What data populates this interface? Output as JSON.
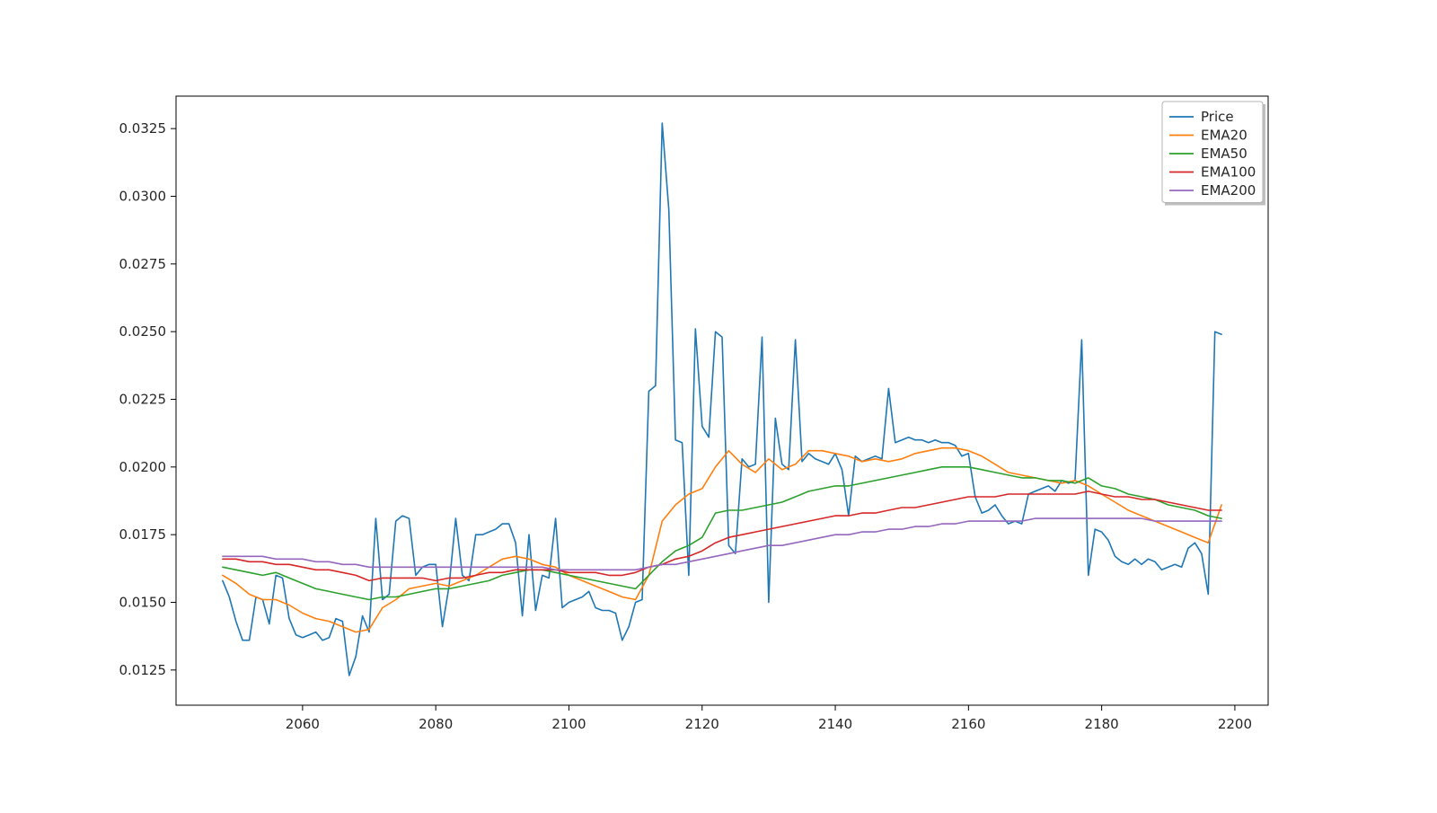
{
  "figure": {
    "background": "#ffffff"
  },
  "chart_data": {
    "type": "line",
    "title": "",
    "xlabel": "",
    "ylabel": "",
    "grid": false,
    "xlim": [
      2041,
      2205
    ],
    "ylim": [
      0.0112,
      0.0337
    ],
    "x_ticks": [
      2060,
      2080,
      2100,
      2120,
      2140,
      2160,
      2180,
      2200
    ],
    "x_tick_labels": [
      "2060",
      "2080",
      "2100",
      "2120",
      "2140",
      "2160",
      "2180",
      "2200"
    ],
    "y_ticks": [
      0.0125,
      0.015,
      0.0175,
      0.02,
      0.0225,
      0.025,
      0.0275,
      0.03,
      0.0325
    ],
    "y_tick_labels": [
      "0.0125",
      "0.0150",
      "0.0175",
      "0.0200",
      "0.0225",
      "0.0250",
      "0.0275",
      "0.0300",
      "0.0325"
    ],
    "legend": {
      "position": "upper right",
      "entries": [
        "Price",
        "EMA20",
        "EMA50",
        "EMA100",
        "EMA200"
      ]
    },
    "series": [
      {
        "name": "Price",
        "color": "#1f77b4",
        "x_start": 2048,
        "x_step": 1,
        "values": [
          0.0158,
          0.0152,
          0.0143,
          0.0136,
          0.0136,
          0.0152,
          0.0151,
          0.0142,
          0.016,
          0.0159,
          0.0144,
          0.0138,
          0.0137,
          0.0138,
          0.0139,
          0.0136,
          0.0137,
          0.0144,
          0.0143,
          0.0123,
          0.013,
          0.0145,
          0.0139,
          0.0181,
          0.0151,
          0.0153,
          0.018,
          0.0182,
          0.0181,
          0.016,
          0.0163,
          0.0164,
          0.0164,
          0.0141,
          0.0156,
          0.0181,
          0.016,
          0.0158,
          0.0175,
          0.0175,
          0.0176,
          0.0177,
          0.0179,
          0.0179,
          0.0172,
          0.0145,
          0.0175,
          0.0147,
          0.016,
          0.0159,
          0.0181,
          0.0148,
          0.015,
          0.0151,
          0.0152,
          0.0154,
          0.0148,
          0.0147,
          0.0147,
          0.0146,
          0.0136,
          0.0141,
          0.015,
          0.0151,
          0.0228,
          0.023,
          0.0327,
          0.0295,
          0.021,
          0.0209,
          0.016,
          0.0251,
          0.0215,
          0.0211,
          0.025,
          0.0248,
          0.0171,
          0.0168,
          0.0203,
          0.02,
          0.0201,
          0.0248,
          0.015,
          0.0218,
          0.0201,
          0.0199,
          0.0247,
          0.0202,
          0.0205,
          0.0203,
          0.0202,
          0.0201,
          0.0205,
          0.0199,
          0.0182,
          0.0204,
          0.0202,
          0.0203,
          0.0204,
          0.0203,
          0.0229,
          0.0209,
          0.021,
          0.0211,
          0.021,
          0.021,
          0.0209,
          0.021,
          0.0209,
          0.0209,
          0.0208,
          0.0204,
          0.0205,
          0.0189,
          0.0183,
          0.0184,
          0.0186,
          0.0182,
          0.0179,
          0.018,
          0.0179,
          0.019,
          0.0191,
          0.0192,
          0.0193,
          0.0191,
          0.0195,
          0.0194,
          0.0195,
          0.0247,
          0.016,
          0.0177,
          0.0176,
          0.0173,
          0.0167,
          0.0165,
          0.0164,
          0.0166,
          0.0164,
          0.0166,
          0.0165,
          0.0162,
          0.0163,
          0.0164,
          0.0163,
          0.017,
          0.0172,
          0.0168,
          0.0153,
          0.025,
          0.0249
        ]
      },
      {
        "name": "EMA20",
        "color": "#ff7f0e",
        "x_start": 2048,
        "x_step": 2,
        "values": [
          0.016,
          0.0157,
          0.0153,
          0.0151,
          0.0151,
          0.0149,
          0.0146,
          0.0144,
          0.0143,
          0.0141,
          0.0139,
          0.014,
          0.0148,
          0.0151,
          0.0155,
          0.0156,
          0.0157,
          0.0156,
          0.0158,
          0.016,
          0.0163,
          0.0166,
          0.0167,
          0.0166,
          0.0164,
          0.0163,
          0.016,
          0.0158,
          0.0156,
          0.0154,
          0.0152,
          0.0151,
          0.016,
          0.018,
          0.0186,
          0.019,
          0.0192,
          0.02,
          0.0206,
          0.0201,
          0.0198,
          0.0203,
          0.0199,
          0.0201,
          0.0206,
          0.0206,
          0.0205,
          0.0204,
          0.0202,
          0.0203,
          0.0202,
          0.0203,
          0.0205,
          0.0206,
          0.0207,
          0.0207,
          0.0206,
          0.0204,
          0.0201,
          0.0198,
          0.0197,
          0.0196,
          0.0195,
          0.0194,
          0.0195,
          0.0193,
          0.019,
          0.0187,
          0.0184,
          0.0182,
          0.018,
          0.0178,
          0.0176,
          0.0174,
          0.0172,
          0.0186
        ]
      },
      {
        "name": "EMA50",
        "color": "#2ca02c",
        "x_start": 2048,
        "x_step": 2,
        "values": [
          0.0163,
          0.0162,
          0.0161,
          0.016,
          0.0161,
          0.0159,
          0.0157,
          0.0155,
          0.0154,
          0.0153,
          0.0152,
          0.0151,
          0.0152,
          0.0152,
          0.0153,
          0.0154,
          0.0155,
          0.0155,
          0.0156,
          0.0157,
          0.0158,
          0.016,
          0.0161,
          0.0162,
          0.0162,
          0.0161,
          0.016,
          0.0159,
          0.0158,
          0.0157,
          0.0156,
          0.0155,
          0.016,
          0.0165,
          0.0169,
          0.0171,
          0.0174,
          0.0183,
          0.0184,
          0.0184,
          0.0185,
          0.0186,
          0.0187,
          0.0189,
          0.0191,
          0.0192,
          0.0193,
          0.0193,
          0.0194,
          0.0195,
          0.0196,
          0.0197,
          0.0198,
          0.0199,
          0.02,
          0.02,
          0.02,
          0.0199,
          0.0198,
          0.0197,
          0.0196,
          0.0196,
          0.0195,
          0.0195,
          0.0194,
          0.0196,
          0.0193,
          0.0192,
          0.019,
          0.0189,
          0.0188,
          0.0186,
          0.0185,
          0.0184,
          0.0182,
          0.0181
        ]
      },
      {
        "name": "EMA100",
        "color": "#d62728",
        "x_start": 2048,
        "x_step": 2,
        "values": [
          0.0166,
          0.0166,
          0.0165,
          0.0165,
          0.0164,
          0.0164,
          0.0163,
          0.0162,
          0.0162,
          0.0161,
          0.016,
          0.0158,
          0.0159,
          0.0159,
          0.0159,
          0.0159,
          0.0158,
          0.0159,
          0.0159,
          0.016,
          0.0161,
          0.0161,
          0.0162,
          0.0162,
          0.0162,
          0.0162,
          0.0161,
          0.0161,
          0.0161,
          0.016,
          0.016,
          0.0161,
          0.0163,
          0.0164,
          0.0166,
          0.0167,
          0.0169,
          0.0172,
          0.0174,
          0.0175,
          0.0176,
          0.0177,
          0.0178,
          0.0179,
          0.018,
          0.0181,
          0.0182,
          0.0182,
          0.0183,
          0.0183,
          0.0184,
          0.0185,
          0.0185,
          0.0186,
          0.0187,
          0.0188,
          0.0189,
          0.0189,
          0.0189,
          0.019,
          0.019,
          0.019,
          0.019,
          0.019,
          0.019,
          0.0191,
          0.019,
          0.0189,
          0.0189,
          0.0188,
          0.0188,
          0.0187,
          0.0186,
          0.0185,
          0.0184,
          0.0184
        ]
      },
      {
        "name": "EMA200",
        "color": "#9467bd",
        "x_start": 2048,
        "x_step": 2,
        "values": [
          0.0167,
          0.0167,
          0.0167,
          0.0167,
          0.0166,
          0.0166,
          0.0166,
          0.0165,
          0.0165,
          0.0164,
          0.0164,
          0.0163,
          0.0163,
          0.0163,
          0.0163,
          0.0163,
          0.0163,
          0.0163,
          0.0163,
          0.0163,
          0.0163,
          0.0163,
          0.0163,
          0.0163,
          0.0163,
          0.0162,
          0.0162,
          0.0162,
          0.0162,
          0.0162,
          0.0162,
          0.0162,
          0.0163,
          0.0164,
          0.0164,
          0.0165,
          0.0166,
          0.0167,
          0.0168,
          0.0169,
          0.017,
          0.0171,
          0.0171,
          0.0172,
          0.0173,
          0.0174,
          0.0175,
          0.0175,
          0.0176,
          0.0176,
          0.0177,
          0.0177,
          0.0178,
          0.0178,
          0.0179,
          0.0179,
          0.018,
          0.018,
          0.018,
          0.018,
          0.018,
          0.0181,
          0.0181,
          0.0181,
          0.0181,
          0.0181,
          0.0181,
          0.0181,
          0.0181,
          0.0181,
          0.018,
          0.018,
          0.018,
          0.018,
          0.018,
          0.018
        ]
      }
    ]
  }
}
